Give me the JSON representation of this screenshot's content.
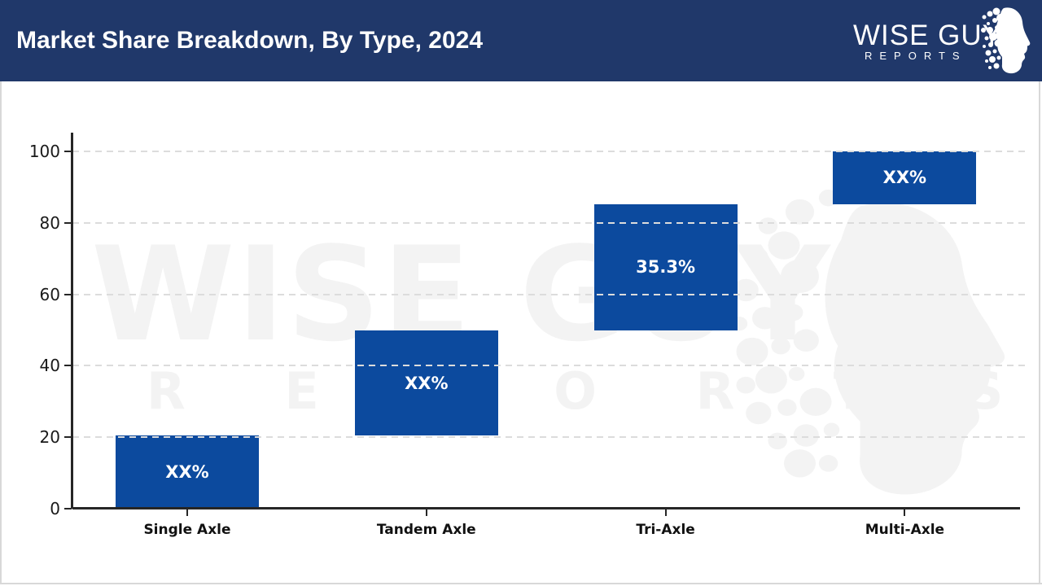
{
  "header": {
    "title": "Market Share Breakdown, By Type, 2024",
    "logo": {
      "name": "WISE GUY",
      "sub": "REPORTS"
    }
  },
  "watermark": {
    "line1": "WISE GUY",
    "line2": "R E P O R T S"
  },
  "chart_data": {
    "type": "bar",
    "subtype": "waterfall",
    "title": "Market Share Breakdown, By Type, 2024",
    "xlabel": "",
    "ylabel": "",
    "categories": [
      "Single Axle",
      "Tandem Axle",
      "Tri-Axle",
      "Multi-Axle"
    ],
    "segments": [
      {
        "category": "Single Axle",
        "start": 0,
        "end": 20.4,
        "label": "XX%"
      },
      {
        "category": "Tandem Axle",
        "start": 20.4,
        "end": 49.9,
        "label": "XX%"
      },
      {
        "category": "Tri-Axle",
        "start": 49.9,
        "end": 85.2,
        "label": "35.3%"
      },
      {
        "category": "Multi-Axle",
        "start": 85.2,
        "end": 100,
        "label": "XX%"
      }
    ],
    "yticks": [
      0,
      20,
      40,
      60,
      80,
      100
    ],
    "ylim": [
      0,
      105
    ],
    "grid": "dashed-horizontal",
    "legend": null,
    "bar_color": "#0C4A9E",
    "bar_label_color": "#ffffff"
  },
  "colors": {
    "header_bg": "#20386A",
    "bar": "#0C4A9E",
    "grid": "#dcdcdc",
    "axis": "#262626",
    "watermark": "#f3f3f3",
    "frame": "#d8d8d8"
  }
}
